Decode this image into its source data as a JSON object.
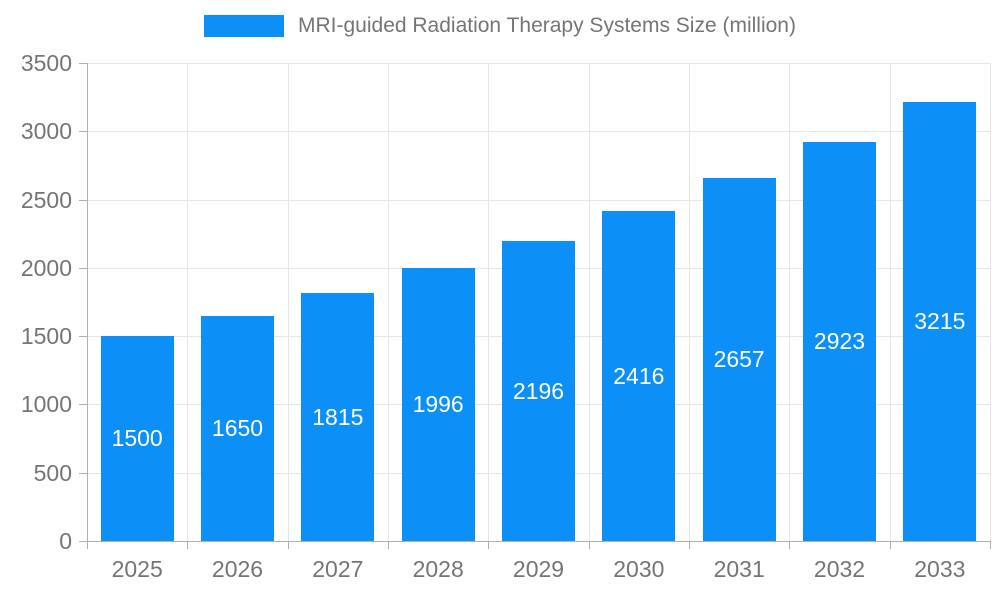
{
  "legend": {
    "label": "MRI-guided Radiation Therapy Systems Size (million)"
  },
  "chart_data": {
    "type": "bar",
    "title": "MRI-guided Radiation Therapy Systems Size (million)",
    "categories": [
      "2025",
      "2026",
      "2027",
      "2028",
      "2029",
      "2030",
      "2031",
      "2032",
      "2033"
    ],
    "values": [
      1500,
      1650,
      1815,
      1996,
      2196,
      2416,
      2657,
      2923,
      3215
    ],
    "value_labels": [
      "1500",
      "1650",
      "1815",
      "1996",
      "2196",
      "2416",
      "2657",
      "2923",
      "3215"
    ],
    "xlabel": "",
    "ylabel": "",
    "ylim": [
      0,
      3500
    ],
    "yticks": [
      0,
      500,
      1000,
      1500,
      2000,
      2500,
      3000,
      3500
    ],
    "grid": true,
    "legend_position": "top-center",
    "colors": {
      "bar": "#0d8ff8",
      "bar_label": "#ffffff",
      "grid": "#e6e6e6",
      "axis": "#b0b0b0",
      "text": "#757575"
    }
  }
}
